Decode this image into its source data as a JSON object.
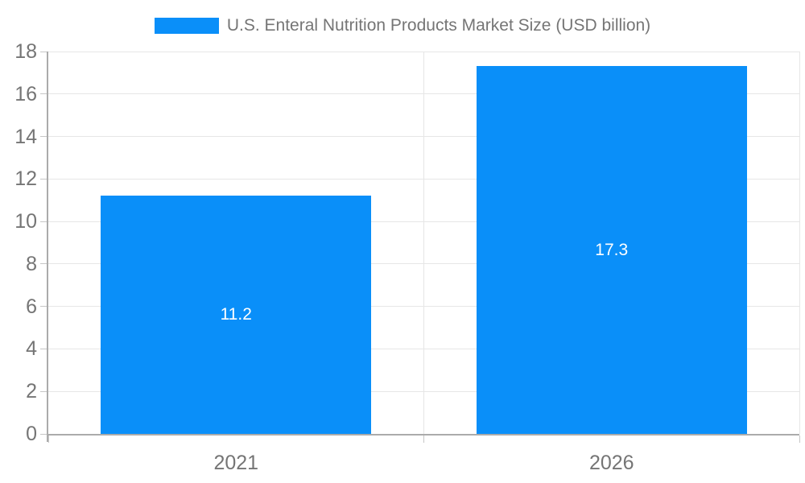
{
  "chart_data": {
    "type": "bar",
    "title": "U.S. Enteral Nutrition Products Market Size (USD billion)",
    "categories": [
      "2021",
      "2026"
    ],
    "values": [
      11.2,
      17.3
    ],
    "value_labels": [
      "11.2",
      "17.3"
    ],
    "ylim": [
      0,
      18
    ],
    "ytick_step": 2,
    "ytick_labels": [
      "0",
      "2",
      "4",
      "6",
      "8",
      "10",
      "12",
      "14",
      "16",
      "18"
    ],
    "grid": true,
    "legend_position": "top-center",
    "bar_band_fraction": 0.72,
    "colors": {
      "bar": "#0a8ff9",
      "bar_label": "#ffffff",
      "grid": "#e6e6e6",
      "axis": "#ababab",
      "tick_mark": "#c6c6c6",
      "tick_label": "#757575",
      "legend_text": "#757575",
      "background": "#ffffff"
    }
  }
}
